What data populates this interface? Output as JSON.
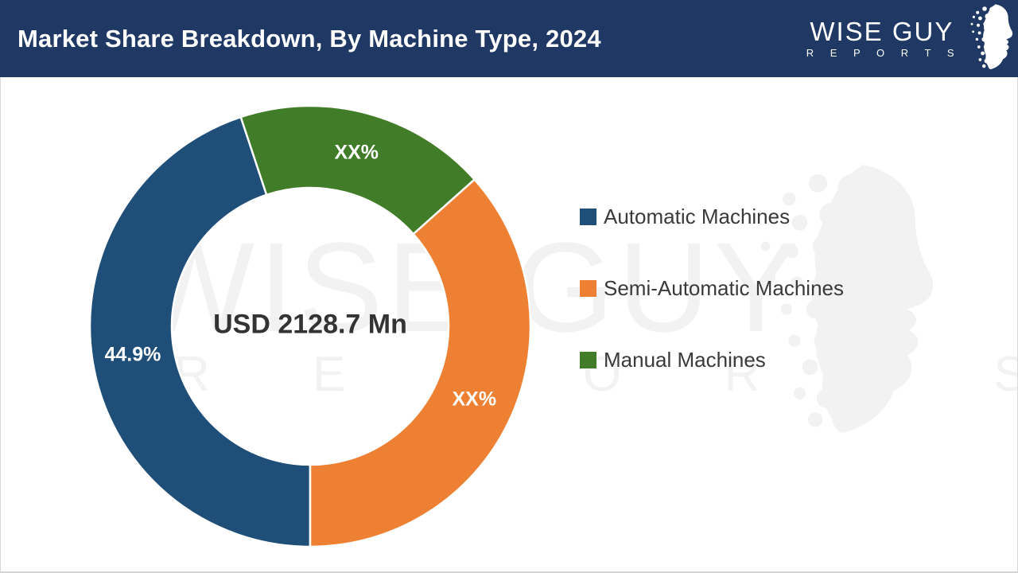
{
  "header": {
    "title": "Market Share Breakdown, By Machine Type, 2024",
    "bg_color": "#1F3864",
    "logo": {
      "name": "WISE GUY",
      "sub": "R E P O R T S"
    }
  },
  "watermark": {
    "line1": "WISE GUY",
    "line2": "R E P O R T S"
  },
  "chart_data": {
    "type": "pie",
    "variant": "donut",
    "title": "Market Share Breakdown, By Machine Type, 2024",
    "center_label": "USD 2128.7 Mn",
    "start_angle_deg": 180,
    "direction": "clockwise",
    "legend_position": "right",
    "slices": [
      {
        "label": "Automatic Machines",
        "value": 44.9,
        "display_label": "44.9%",
        "color": "#1F4E79"
      },
      {
        "label": "Manual Machines",
        "value": 18.5,
        "display_label": "XX%",
        "color": "#417C28"
      },
      {
        "label": "Semi-Automatic Machines",
        "value": 36.6,
        "display_label": "XX%",
        "color": "#EE8033"
      }
    ],
    "legend": [
      {
        "label": "Automatic Machines",
        "color": "#1F4E79"
      },
      {
        "label": "Semi-Automatic Machines",
        "color": "#EE8033"
      },
      {
        "label": "Manual Machines",
        "color": "#417C28"
      }
    ]
  }
}
